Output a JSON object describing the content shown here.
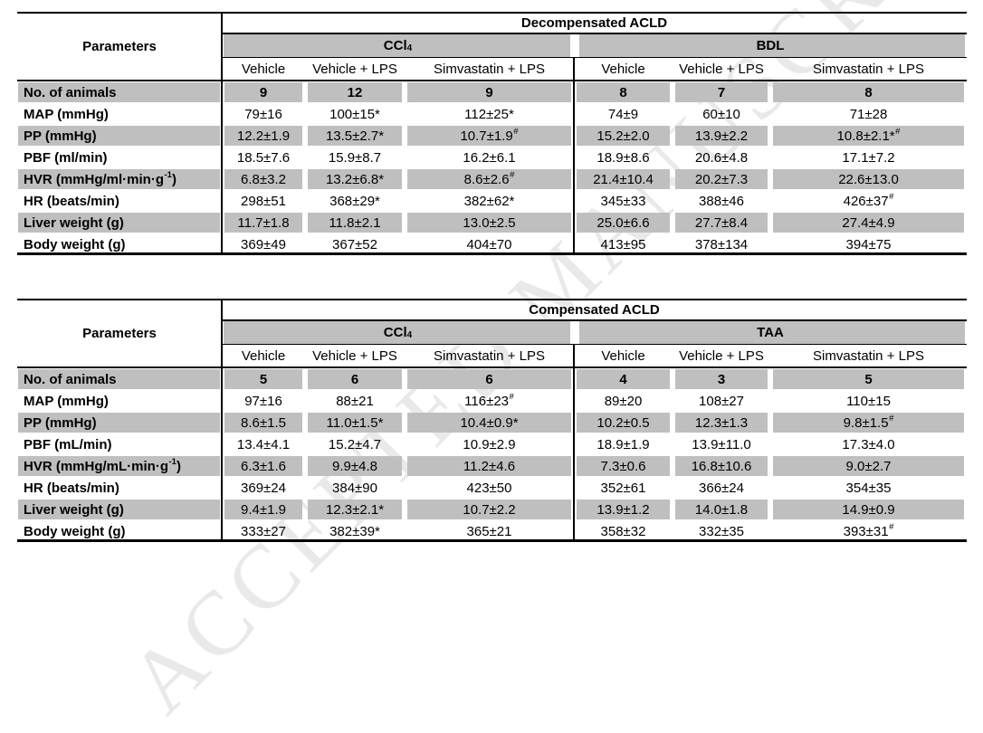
{
  "watermark": {
    "text": "ACCEPTED MANUSCRIPT",
    "color": "#e9e9e9"
  },
  "colors": {
    "band": "#bfbfbf",
    "border": "#000000",
    "text": "#000000"
  },
  "tables": [
    {
      "title": "Decompensated ACLD",
      "parameters_header": "Parameters",
      "groups": [
        {
          "label": "CCl_{4}",
          "columns": [
            "Vehicle",
            "Vehicle + LPS",
            "Simvastatin + LPS"
          ]
        },
        {
          "label": "BDL",
          "columns": [
            "Vehicle",
            "Vehicle + LPS",
            "Simvastatin + LPS"
          ]
        }
      ],
      "rows": [
        {
          "label": "No. of animals",
          "bold_values": true,
          "values": [
            "9",
            "12",
            "9",
            "8",
            "7",
            "8"
          ]
        },
        {
          "label": "MAP (mmHg)",
          "values": [
            "79±16",
            "100±15*",
            "112±25*",
            "74±9",
            "60±10",
            "71±28"
          ]
        },
        {
          "label": "PP (mmHg)",
          "values": [
            "12.2±1.9",
            "13.5±2.7*",
            "10.7±1.9^{#}",
            "15.2±2.0",
            "13.9±2.2",
            "10.8±2.1*^{#}"
          ]
        },
        {
          "label": "PBF (ml/min)",
          "values": [
            "18.5±7.6",
            "15.9±8.7",
            "16.2±6.1",
            "18.9±8.6",
            "20.6±4.8",
            "17.1±7.2"
          ]
        },
        {
          "label": "HVR (mmHg/ml·min·g^{-1})",
          "values": [
            "6.8±3.2",
            "13.2±6.8*",
            "8.6±2.6^{#}",
            "21.4±10.4",
            "20.2±7.3",
            "22.6±13.0"
          ]
        },
        {
          "label": "HR (beats/min)",
          "values": [
            "298±51",
            "368±29*",
            "382±62*",
            "345±33",
            "388±46",
            "426±37^{#}"
          ]
        },
        {
          "label": "Liver weight (g)",
          "values": [
            "11.7±1.8",
            "11.8±2.1",
            "13.0±2.5",
            "25.0±6.6",
            "27.7±8.4",
            "27.4±4.9"
          ]
        },
        {
          "label": "Body weight (g)",
          "values": [
            "369±49",
            "367±52",
            "404±70",
            "413±95",
            "378±134",
            "394±75"
          ]
        }
      ]
    },
    {
      "title": "Compensated ACLD",
      "parameters_header": "Parameters",
      "groups": [
        {
          "label": "CCl_{4}",
          "columns": [
            "Vehicle",
            "Vehicle + LPS",
            "Simvastatin + LPS"
          ]
        },
        {
          "label": "TAA",
          "columns": [
            "Vehicle",
            "Vehicle + LPS",
            "Simvastatin + LPS"
          ]
        }
      ],
      "rows": [
        {
          "label": "No. of animals",
          "bold_values": true,
          "values": [
            "5",
            "6",
            "6",
            "4",
            "3",
            "5"
          ]
        },
        {
          "label": "MAP (mmHg)",
          "values": [
            "97±16",
            "88±21",
            "116±23^{#}",
            "89±20",
            "108±27",
            "110±15"
          ]
        },
        {
          "label": "PP (mmHg)",
          "values": [
            "8.6±1.5",
            "11.0±1.5*",
            "10.4±0.9*",
            "10.2±0.5",
            "12.3±1.3",
            "9.8±1.5^{#}"
          ]
        },
        {
          "label": "PBF (mL/min)",
          "values": [
            "13.4±4.1",
            "15.2±4.7",
            "10.9±2.9",
            "18.9±1.9",
            "13.9±11.0",
            "17.3±4.0"
          ]
        },
        {
          "label": "HVR (mmHg/mL·min·g^{-1})",
          "values": [
            "6.3±1.6",
            "9.9±4.8",
            "11.2±4.6",
            "7.3±0.6",
            "16.8±10.6",
            "9.0±2.7"
          ]
        },
        {
          "label": "HR (beats/min)",
          "values": [
            "369±24",
            "384±90",
            "423±50",
            "352±61",
            "366±24",
            "354±35"
          ]
        },
        {
          "label": "Liver weight (g)",
          "values": [
            "9.4±1.9",
            "12.3±2.1*",
            "10.7±2.2",
            "13.9±1.2",
            "14.0±1.8",
            "14.9±0.9"
          ]
        },
        {
          "label": "Body weight (g)",
          "values": [
            "333±27",
            "382±39*",
            "365±21",
            "358±32",
            "332±35",
            "393±31^{#}"
          ]
        }
      ]
    }
  ]
}
